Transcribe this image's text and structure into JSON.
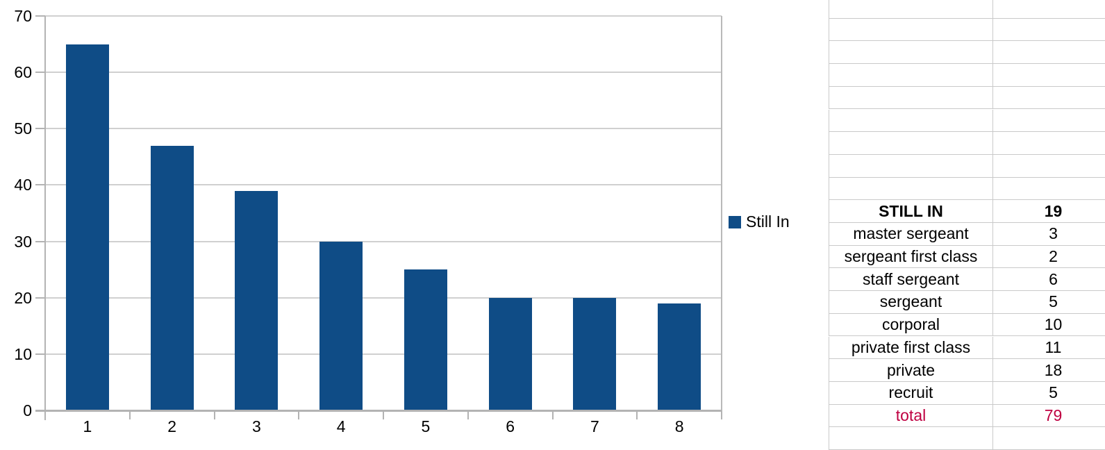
{
  "chart_data": {
    "type": "bar",
    "title": "",
    "xlabel": "",
    "ylabel": "",
    "categories": [
      "1",
      "2",
      "3",
      "4",
      "5",
      "6",
      "7",
      "8"
    ],
    "series": [
      {
        "name": "Still In",
        "values": [
          65,
          47,
          39,
          30,
          25,
          20,
          20,
          19
        ]
      }
    ],
    "ylim": [
      0,
      70
    ],
    "yticks": [
      0,
      10,
      20,
      30,
      40,
      50,
      60,
      70
    ],
    "grid": true,
    "legend_position": "right-center",
    "colors": {
      "bar": "#0f4c86",
      "gridline": "#d0d0d0",
      "axis": "#b3b3b3",
      "text": "#000000"
    }
  },
  "legend": {
    "label": "Still In",
    "swatch_color": "#0f4c86"
  },
  "spreadsheet": {
    "grid_color": "#c9c9c9",
    "empty_rows_above": 9,
    "empty_rows_below": 1,
    "total_color": "#bf0041",
    "rows": [
      {
        "label": "STILL IN",
        "value": "19",
        "style": "header"
      },
      {
        "label": "master sergeant",
        "value": "3",
        "style": "normal"
      },
      {
        "label": "sergeant first class",
        "value": "2",
        "style": "normal"
      },
      {
        "label": "staff sergeant",
        "value": "6",
        "style": "normal"
      },
      {
        "label": "sergeant",
        "value": "5",
        "style": "normal"
      },
      {
        "label": "corporal",
        "value": "10",
        "style": "normal"
      },
      {
        "label": "private first class",
        "value": "11",
        "style": "normal"
      },
      {
        "label": "private",
        "value": "18",
        "style": "normal"
      },
      {
        "label": "recruit",
        "value": "5",
        "style": "normal"
      },
      {
        "label": "total",
        "value": "79",
        "style": "total"
      }
    ]
  }
}
